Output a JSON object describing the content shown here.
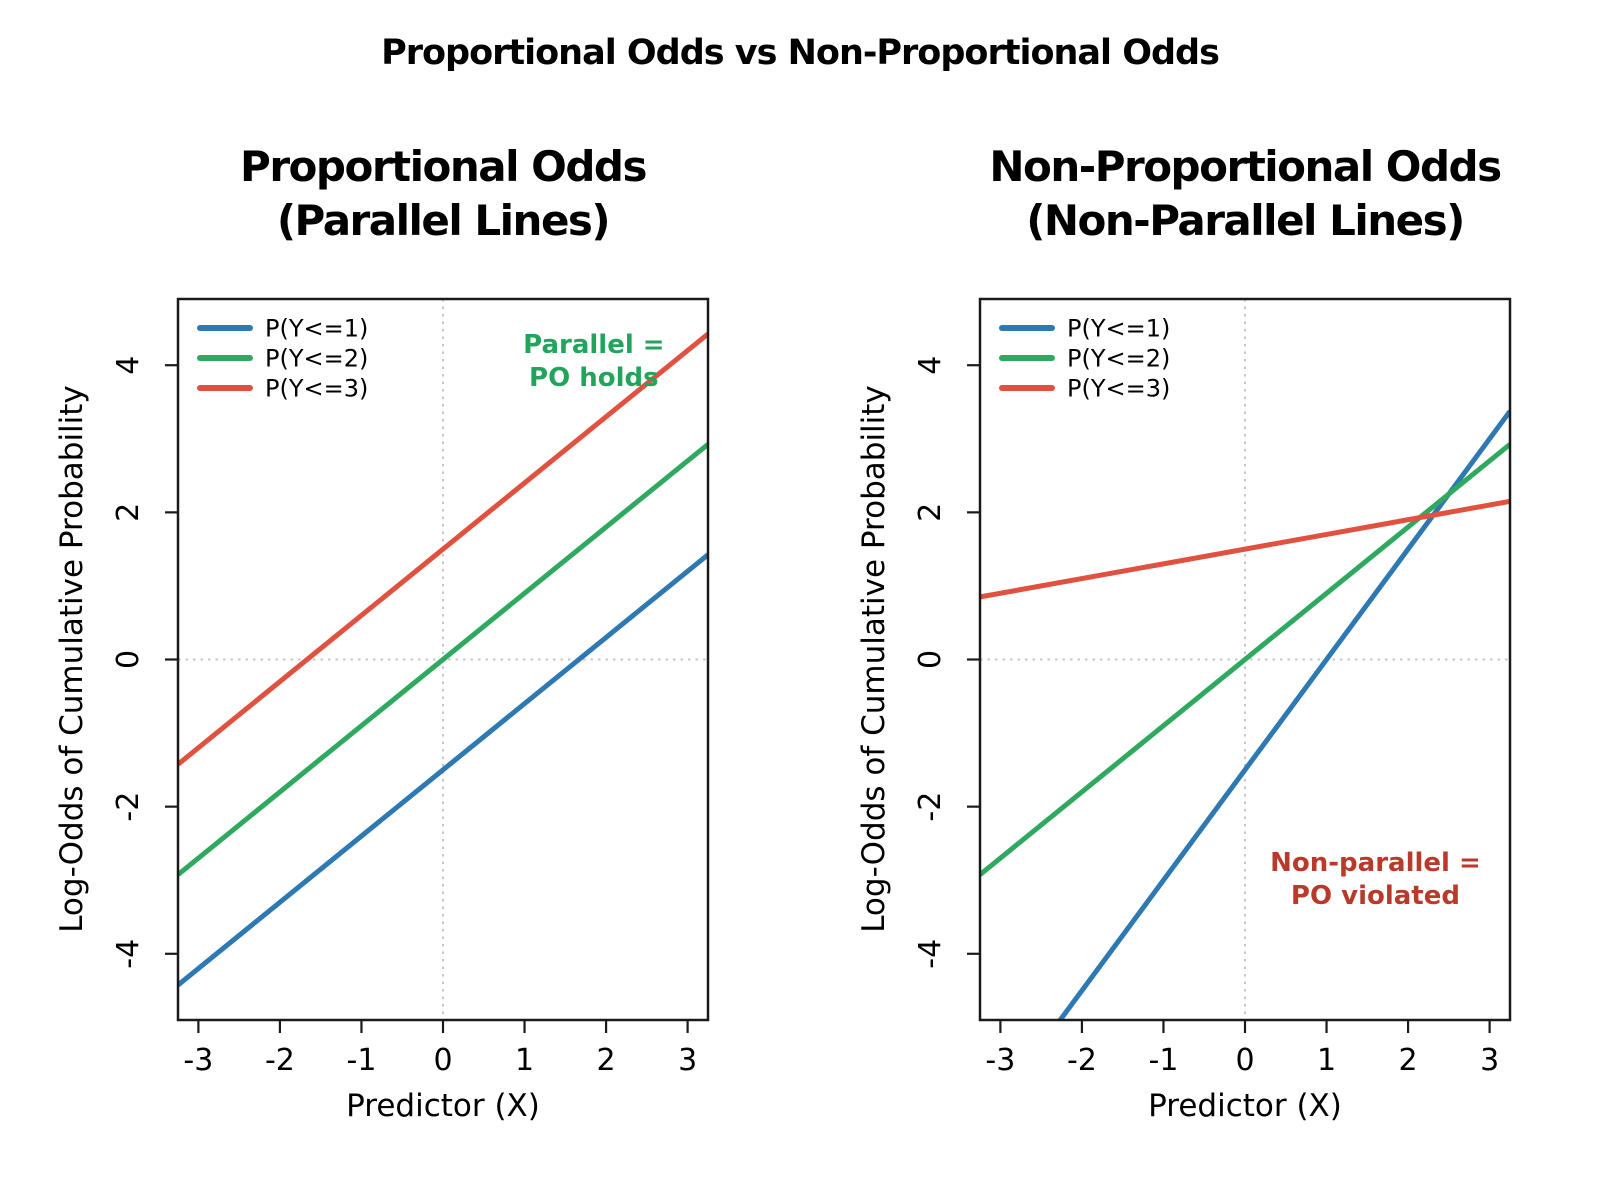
{
  "figure": {
    "title": "Proportional Odds vs Non-Proportional Odds",
    "background": "#ffffff"
  },
  "chart_data": [
    {
      "type": "line",
      "title": "Proportional Odds",
      "subtitle": "(Parallel Lines)",
      "xlabel": "Predictor (X)",
      "ylabel": "Log-Odds of Cumulative Probability",
      "xlim": [
        -3.25,
        3.25
      ],
      "ylim": [
        -4.9,
        4.9
      ],
      "xticks": [
        -3,
        -2,
        -1,
        0,
        1,
        2,
        3
      ],
      "yticks": [
        -4,
        -2,
        0,
        2,
        4
      ],
      "grid": {
        "vline_x": 0,
        "hline_y": 0,
        "style": "dotted",
        "color": "#c6c6c6"
      },
      "legend": {
        "position": "top-left",
        "frame": false,
        "entries": [
          {
            "label": "P(Y<=1)",
            "color": "#2E79B2"
          },
          {
            "label": "P(Y<=2)",
            "color": "#2FA95F"
          },
          {
            "label": "P(Y<=3)",
            "color": "#E0513F"
          }
        ]
      },
      "series": [
        {
          "name": "P(Y<=1)",
          "color": "#2E79B2",
          "intercept": -1.5,
          "slope": 0.9,
          "x": [
            -3.2,
            3.2
          ],
          "y": [
            -4.38,
            1.38
          ]
        },
        {
          "name": "P(Y<=2)",
          "color": "#2FA95F",
          "intercept": 0.0,
          "slope": 0.9,
          "x": [
            -3.2,
            3.2
          ],
          "y": [
            -2.88,
            2.88
          ]
        },
        {
          "name": "P(Y<=3)",
          "color": "#E0513F",
          "intercept": 1.5,
          "slope": 0.9,
          "x": [
            -3.2,
            3.2
          ],
          "y": [
            -1.38,
            4.38
          ]
        }
      ],
      "annotation": {
        "text_lines": [
          "Parallel =",
          "PO holds"
        ],
        "color": "#22A45C",
        "x": 1.85,
        "y": 4.05
      }
    },
    {
      "type": "line",
      "title": "Non-Proportional Odds",
      "subtitle": "(Non-Parallel Lines)",
      "xlabel": "Predictor (X)",
      "ylabel": "Log-Odds of Cumulative Probability",
      "xlim": [
        -3.25,
        3.25
      ],
      "ylim": [
        -4.9,
        4.9
      ],
      "xticks": [
        -3,
        -2,
        -1,
        0,
        1,
        2,
        3
      ],
      "yticks": [
        -4,
        -2,
        0,
        2,
        4
      ],
      "grid": {
        "vline_x": 0,
        "hline_y": 0,
        "style": "dotted",
        "color": "#c6c6c6"
      },
      "legend": {
        "position": "top-left",
        "frame": false,
        "entries": [
          {
            "label": "P(Y<=1)",
            "color": "#2E79B2"
          },
          {
            "label": "P(Y<=2)",
            "color": "#2FA95F"
          },
          {
            "label": "P(Y<=3)",
            "color": "#E0513F"
          }
        ]
      },
      "series": [
        {
          "name": "P(Y<=1)",
          "color": "#2E79B2",
          "intercept": -1.5,
          "slope": 1.5,
          "x": [
            -3.2,
            3.2
          ],
          "y": [
            -6.3,
            3.3
          ]
        },
        {
          "name": "P(Y<=2)",
          "color": "#2FA95F",
          "intercept": 0.0,
          "slope": 0.9,
          "x": [
            -3.2,
            3.2
          ],
          "y": [
            -2.88,
            2.88
          ]
        },
        {
          "name": "P(Y<=3)",
          "color": "#E0513F",
          "intercept": 1.5,
          "slope": 0.2,
          "x": [
            -3.2,
            3.2
          ],
          "y": [
            0.86,
            2.14
          ]
        }
      ],
      "annotation": {
        "text_lines": [
          "Non-parallel =",
          "PO violated"
        ],
        "color": "#B93A2B",
        "x": 1.6,
        "y": -3.0
      }
    }
  ]
}
